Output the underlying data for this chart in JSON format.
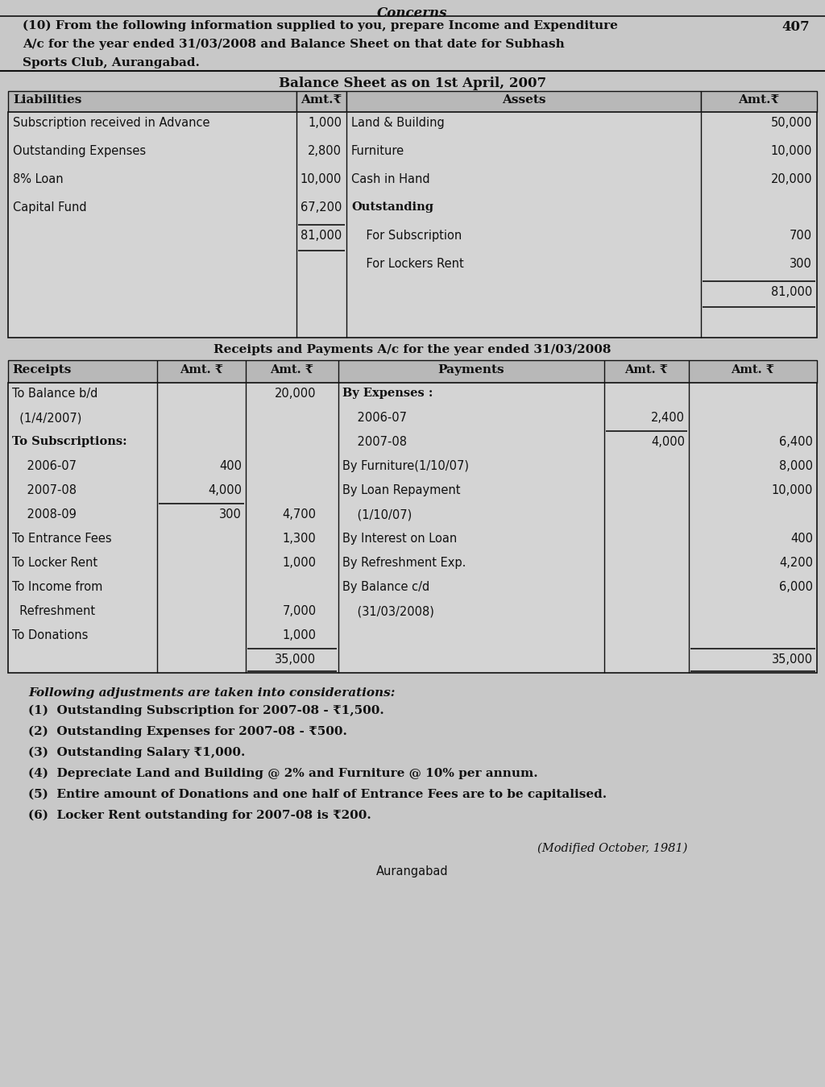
{
  "page_number": "407",
  "header_line1": "Concerns",
  "header_line2": "(10) From the following information supplied to you, prepare Income and Expenditure",
  "header_line3": "A/c for the year ended 31/03/2008 and Balance Sheet on that date for Subhash",
  "header_line4": "Sports Club, Aurangabad.",
  "bs_title": "Balance Sheet as on 1st April, 2007",
  "rp_title": "Receipts and Payments A/c for the year ended 31/03/2008",
  "adjustments_title": "Following adjustments are taken into considerations:",
  "adjustments": [
    "(1)  Outstanding Subscription for 2007-08 - ₹1,500.",
    "(2)  Outstanding Expenses for 2007-08 - ₹500.",
    "(3)  Outstanding Salary ₹1,000.",
    "(4)  Depreciate Land and Building @ 2% and Furniture @ 10% per annum.",
    "(5)  Entire amount of Donations and one half of Entrance Fees are to be capitalised.",
    "(6)  Locker Rent outstanding for 2007-08 is ₹200."
  ],
  "footer": "(Modified October, 1981)",
  "footer2": "Aurangabad",
  "bg_color": "#c8c8c8",
  "header_bg": "#b8b8b8",
  "table_bg": "#d4d4d4",
  "col_header_bg": "#b0b0b0"
}
